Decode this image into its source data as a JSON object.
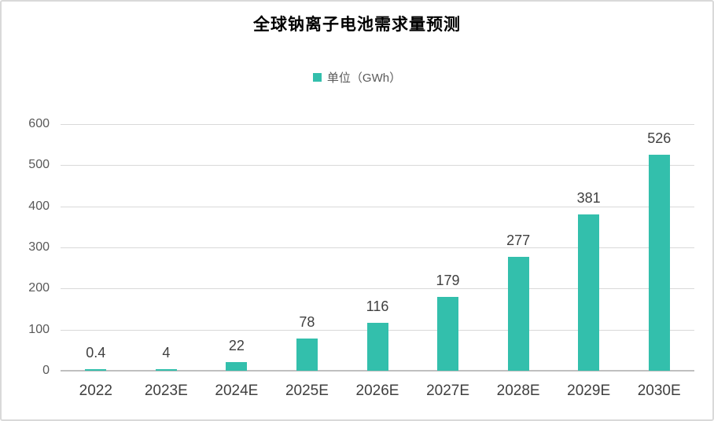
{
  "title": "全球钠离子电池需求量预测",
  "legend": {
    "label": "单位（GWh）"
  },
  "chart_data": {
    "type": "bar",
    "title": "全球钠离子电池需求量预测",
    "series_name": "单位（GWh）",
    "categories": [
      "2022",
      "2023E",
      "2024E",
      "2025E",
      "2026E",
      "2027E",
      "2028E",
      "2029E",
      "2030E"
    ],
    "values": [
      0.4,
      4,
      22,
      78,
      116,
      179,
      277,
      381,
      526
    ],
    "data_labels": [
      "0.4",
      "4",
      "22",
      "78",
      "116",
      "179",
      "277",
      "381",
      "526"
    ],
    "xlabel": "",
    "ylabel": "",
    "ylim": [
      0,
      600
    ],
    "y_ticks": [
      0,
      100,
      200,
      300,
      400,
      500,
      600
    ],
    "grid": true,
    "legend_position": "top-center"
  },
  "colors": {
    "bar": "#33bfac",
    "gridline": "#d9d9d9",
    "axis_line": "#bfbfbf",
    "y_tick_text": "#595959",
    "x_tick_text": "#3f3f3f",
    "value_label_text": "#404040",
    "legend_text": "#595959",
    "title_text": "#000000",
    "card_border": "#d9d9d9"
  }
}
